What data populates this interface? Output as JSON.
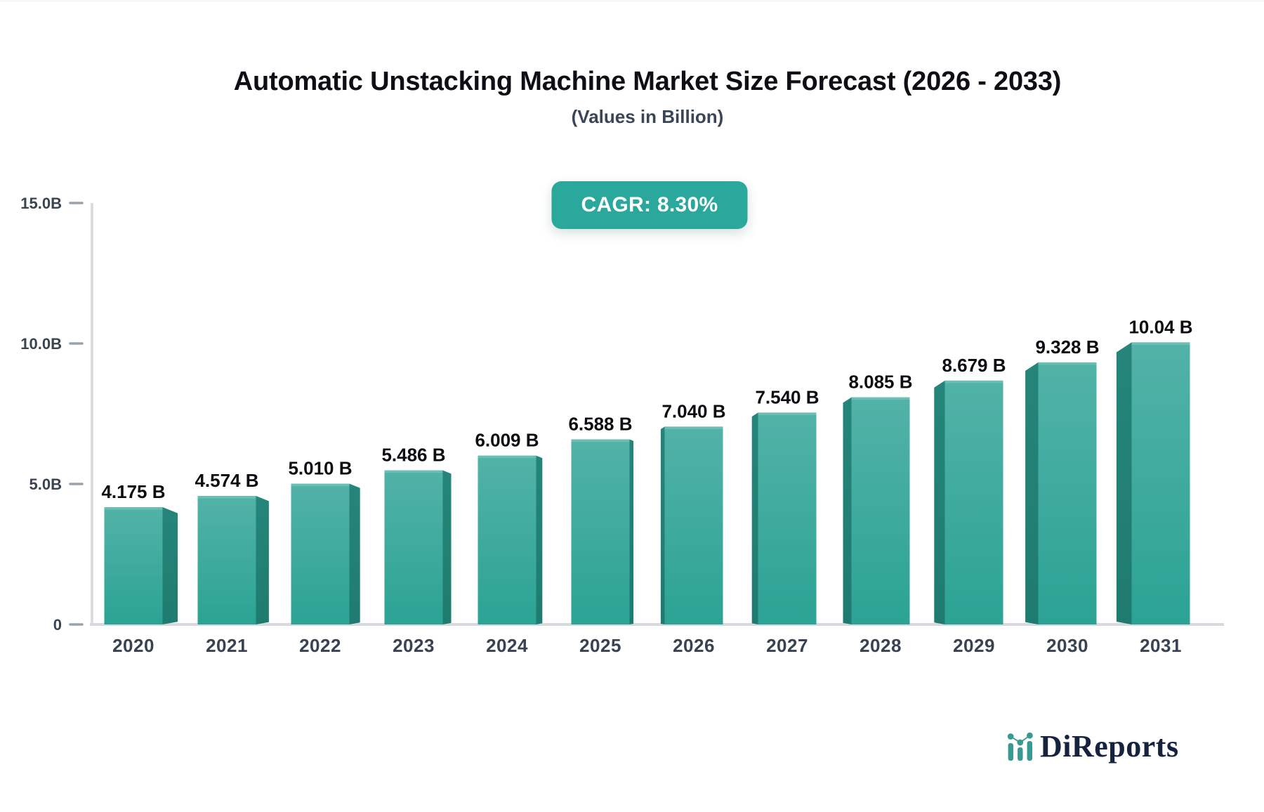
{
  "header": {
    "title": "Automatic Unstacking Machine Market Size Forecast (2026 - 2033)",
    "subtitle": "(Values in Billion)",
    "cagr_badge": "CAGR: 8.30%"
  },
  "chart_data": {
    "type": "bar",
    "title": "Automatic Unstacking Machine Market Size Forecast (2026 - 2033)",
    "subtitle": "(Values in Billion)",
    "units": "Billion",
    "cagr_pct": 8.3,
    "categories": [
      "2020",
      "2021",
      "2022",
      "2023",
      "2024",
      "2025",
      "2026",
      "2027",
      "2028",
      "2029",
      "2030",
      "2031"
    ],
    "values": [
      4.175,
      4.574,
      5.01,
      5.486,
      6.009,
      6.588,
      7.04,
      7.54,
      8.085,
      8.679,
      9.328,
      10.04
    ],
    "value_labels": [
      "4.175 B",
      "4.574 B",
      "5.010 B",
      "5.486 B",
      "6.009 B",
      "6.588 B",
      "7.040 B",
      "7.540 B",
      "8.085 B",
      "8.679 B",
      "9.328 B",
      "10.04 B"
    ],
    "y_ticks": [
      {
        "label": "0",
        "value": 0
      },
      {
        "label": "5.0B",
        "value": 5
      },
      {
        "label": "10.0B",
        "value": 10
      },
      {
        "label": "15.0B",
        "value": 15
      }
    ],
    "ylim": [
      0,
      15
    ],
    "grid": false,
    "legend": false,
    "style": "3d-perspective-bars"
  },
  "branding": {
    "name": "DiReports"
  },
  "colors": {
    "bar_face_top": "#52b2a8",
    "bar_face_bottom": "#2ba394",
    "bar_side": "#1f7b6f",
    "bar_highlight": "#6abfb4",
    "badge_bg": "#2aa89b",
    "badge_text": "#ffffff",
    "axis": "#d6d9de",
    "tick_dash": "#9aa2ac",
    "tick_label": "#3a4450",
    "x_label": "#384250",
    "value_label": "#0b0d11",
    "title": "#0d0f14",
    "subtitle": "#3a4656",
    "logo_navy": "#16233c",
    "logo_teal": "#379b91"
  }
}
